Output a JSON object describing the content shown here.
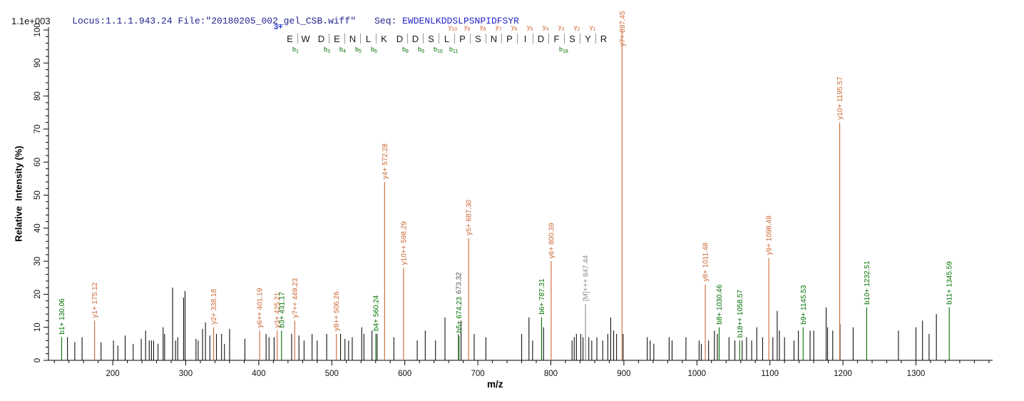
{
  "header": {
    "locus_file": "Locus:1.1.1.943.24 File:\"20180205_002_gel_CSB.wiff\"",
    "seq_label": "Seq:",
    "sequence": "EWDENLKDDSLPSNPIDFSYR"
  },
  "ladder": {
    "charge": "3+",
    "residues": [
      {
        "aa": "E",
        "divider": true,
        "b": "b1"
      },
      {
        "aa": "W",
        "divider": false
      },
      {
        "aa": "D",
        "divider": true,
        "b": "b3"
      },
      {
        "aa": "E",
        "divider": true,
        "b": "b4"
      },
      {
        "aa": "N",
        "divider": true,
        "b": "b5"
      },
      {
        "aa": "L",
        "divider": true,
        "b": "b6"
      },
      {
        "aa": "K",
        "divider": false
      },
      {
        "aa": "D",
        "divider": true,
        "b": "b8"
      },
      {
        "aa": "D",
        "divider": true,
        "b": "b9"
      },
      {
        "aa": "S",
        "divider": true,
        "b": "b10"
      },
      {
        "aa": "L",
        "divider": true,
        "b": "b11",
        "y": "y10"
      },
      {
        "aa": "P",
        "divider": true,
        "y": "y9"
      },
      {
        "aa": "S",
        "divider": true,
        "y": "y8"
      },
      {
        "aa": "N",
        "divider": true,
        "y": "y7"
      },
      {
        "aa": "P",
        "divider": true,
        "y": "y6"
      },
      {
        "aa": "I",
        "divider": true,
        "y": "y5"
      },
      {
        "aa": "D",
        "divider": true,
        "y": "y4"
      },
      {
        "aa": "F",
        "divider": true,
        "y": "y3",
        "b": "b18"
      },
      {
        "aa": "S",
        "divider": true,
        "y": "y2"
      },
      {
        "aa": "Y",
        "divider": true,
        "y": "y1"
      },
      {
        "aa": "R",
        "divider": false
      }
    ]
  },
  "chart_data": {
    "type": "bar",
    "subtype": "ms2-fragment-spectrum",
    "xlabel": "m/z",
    "ylabel": "Relative  Intensity (%)",
    "y_axis_top_label": "1.1e+003",
    "x_range": [
      112,
      1405
    ],
    "y_range": [
      0,
      100
    ],
    "x_ticks": [
      200,
      300,
      400,
      500,
      600,
      700,
      800,
      900,
      1000,
      1100,
      1200,
      1300
    ],
    "x_minor_step": 20,
    "y_tick_step": 10,
    "y_minor_step": 2,
    "grid": false,
    "legend": "none",
    "colors": {
      "y_ion": "#cc6633",
      "b_ion": "#007000",
      "precursor": "#8a8a8a",
      "unassigned_label": "#555555",
      "peak": "#111111",
      "axis": "#000000"
    },
    "labeled_peaks": [
      {
        "label": "b1+ 130.06",
        "mz": 130.06,
        "intensity": 7,
        "type": "b"
      },
      {
        "label": "y1+ 175.12",
        "mz": 175.12,
        "intensity": 12,
        "type": "y"
      },
      {
        "label": "y2+ 338.18",
        "mz": 338.18,
        "intensity": 10,
        "type": "y"
      },
      {
        "label": "y6++ 401.19",
        "mz": 401.19,
        "intensity": 9,
        "type": "y"
      },
      {
        "label": "y3+ 425.21",
        "mz": 425.21,
        "intensity": 9,
        "type": "y"
      },
      {
        "label": "b3+ 431.17",
        "mz": 431.17,
        "intensity": 9,
        "type": "b"
      },
      {
        "label": "y7++ 449.23",
        "mz": 449.23,
        "intensity": 12,
        "type": "y"
      },
      {
        "label": "y8++ 506.26",
        "mz": 506.26,
        "intensity": 8,
        "type": "y"
      },
      {
        "label": "b4+ 560.24",
        "mz": 560.24,
        "intensity": 8,
        "type": "b"
      },
      {
        "label": "y4+ 572.28",
        "mz": 572.28,
        "intensity": 54,
        "type": "y"
      },
      {
        "label": "y10++ 598.29",
        "mz": 598.29,
        "intensity": 28,
        "type": "y"
      },
      {
        "label": "673.32",
        "mz": 673.32,
        "intensity": 8,
        "type": "other",
        "label_lift": 52
      },
      {
        "label": "b5+ 674.23",
        "mz": 674.23,
        "intensity": 7.5,
        "type": "b"
      },
      {
        "label": "y5+ 687.30",
        "mz": 687.3,
        "intensity": 37,
        "type": "y"
      },
      {
        "label": "b6+ 787.31",
        "mz": 787.31,
        "intensity": 13,
        "type": "b"
      },
      {
        "label": "y6+ 800.39",
        "mz": 800.39,
        "intensity": 30,
        "type": "y"
      },
      {
        "label": "[M]+++ 847.44",
        "mz": 847.44,
        "intensity": 17,
        "type": "precursor"
      },
      {
        "label": "y7+ 897.45",
        "mz": 897.45,
        "intensity": 100,
        "type": "y"
      },
      {
        "label": "y8+ 1011.48",
        "mz": 1011.48,
        "intensity": 23,
        "type": "y"
      },
      {
        "label": "b8+ 1030.46",
        "mz": 1030.46,
        "intensity": 10,
        "type": "b"
      },
      {
        "label": "b18++ 1058.57",
        "mz": 1058.57,
        "intensity": 6,
        "type": "b"
      },
      {
        "label": "y9+ 1098.49",
        "mz": 1098.49,
        "intensity": 31,
        "type": "y"
      },
      {
        "label": "b9+ 1145.53",
        "mz": 1145.53,
        "intensity": 10,
        "type": "b"
      },
      {
        "label": "y10+ 1195.57",
        "mz": 1195.57,
        "intensity": 72,
        "type": "y"
      },
      {
        "label": "b10+ 1232.51",
        "mz": 1232.51,
        "intensity": 16,
        "type": "b"
      },
      {
        "label": "b11+ 1345.59",
        "mz": 1345.59,
        "intensity": 16,
        "type": "b"
      }
    ],
    "unlabeled_peaks": [
      [
        138,
        7
      ],
      [
        148,
        5.5
      ],
      [
        158,
        7
      ],
      [
        184,
        5.5
      ],
      [
        201,
        6
      ],
      [
        207,
        4.5
      ],
      [
        217,
        7.5
      ],
      [
        228,
        5
      ],
      [
        239,
        6.5
      ],
      [
        245,
        9
      ],
      [
        250,
        6
      ],
      [
        253,
        6
      ],
      [
        256,
        6
      ],
      [
        262,
        5
      ],
      [
        269,
        10
      ],
      [
        271,
        8
      ],
      [
        282,
        22
      ],
      [
        286,
        6
      ],
      [
        289,
        7
      ],
      [
        297,
        19
      ],
      [
        299,
        21
      ],
      [
        314,
        6.5
      ],
      [
        317,
        6
      ],
      [
        323,
        9.5
      ],
      [
        327,
        11.5
      ],
      [
        333,
        7.5
      ],
      [
        342,
        8
      ],
      [
        349,
        8
      ],
      [
        353,
        5
      ],
      [
        360,
        9.5
      ],
      [
        381,
        6.5
      ],
      [
        410,
        8
      ],
      [
        414,
        7
      ],
      [
        421,
        7
      ],
      [
        445,
        8
      ],
      [
        455,
        7.5
      ],
      [
        462,
        6
      ],
      [
        473,
        8
      ],
      [
        480,
        6
      ],
      [
        493,
        8
      ],
      [
        512,
        8
      ],
      [
        518,
        6.5
      ],
      [
        523,
        6
      ],
      [
        528,
        7
      ],
      [
        541,
        10
      ],
      [
        544,
        8
      ],
      [
        555,
        9
      ],
      [
        562,
        8
      ],
      [
        585,
        7
      ],
      [
        617,
        6
      ],
      [
        628,
        9
      ],
      [
        642,
        6
      ],
      [
        655,
        13
      ],
      [
        677,
        12
      ],
      [
        695,
        8
      ],
      [
        711,
        7
      ],
      [
        760,
        8
      ],
      [
        770,
        13
      ],
      [
        775,
        6
      ],
      [
        790,
        10
      ],
      [
        829,
        6
      ],
      [
        832,
        7
      ],
      [
        835,
        8
      ],
      [
        841,
        8
      ],
      [
        844,
        7
      ],
      [
        852,
        7
      ],
      [
        856,
        6
      ],
      [
        863,
        7
      ],
      [
        871,
        6
      ],
      [
        878,
        8
      ],
      [
        882,
        13
      ],
      [
        886,
        9
      ],
      [
        890,
        8
      ],
      [
        899,
        8
      ],
      [
        932,
        7
      ],
      [
        936,
        6
      ],
      [
        941,
        5
      ],
      [
        962,
        7
      ],
      [
        966,
        6
      ],
      [
        985,
        7
      ],
      [
        1003,
        6
      ],
      [
        1006,
        5
      ],
      [
        1016,
        6
      ],
      [
        1024,
        9
      ],
      [
        1028,
        8
      ],
      [
        1044,
        7
      ],
      [
        1052,
        6
      ],
      [
        1062,
        6
      ],
      [
        1068,
        7
      ],
      [
        1075,
        6
      ],
      [
        1082,
        10
      ],
      [
        1090,
        7
      ],
      [
        1104,
        7
      ],
      [
        1110,
        15
      ],
      [
        1113,
        9
      ],
      [
        1120,
        7
      ],
      [
        1133,
        6
      ],
      [
        1139,
        9
      ],
      [
        1155,
        9
      ],
      [
        1160,
        9
      ],
      [
        1177,
        16
      ],
      [
        1179,
        10
      ],
      [
        1186,
        9
      ],
      [
        1196,
        11
      ],
      [
        1214,
        10
      ],
      [
        1276,
        9
      ],
      [
        1300,
        10
      ],
      [
        1309,
        12
      ],
      [
        1318,
        8
      ],
      [
        1328,
        14
      ]
    ]
  }
}
